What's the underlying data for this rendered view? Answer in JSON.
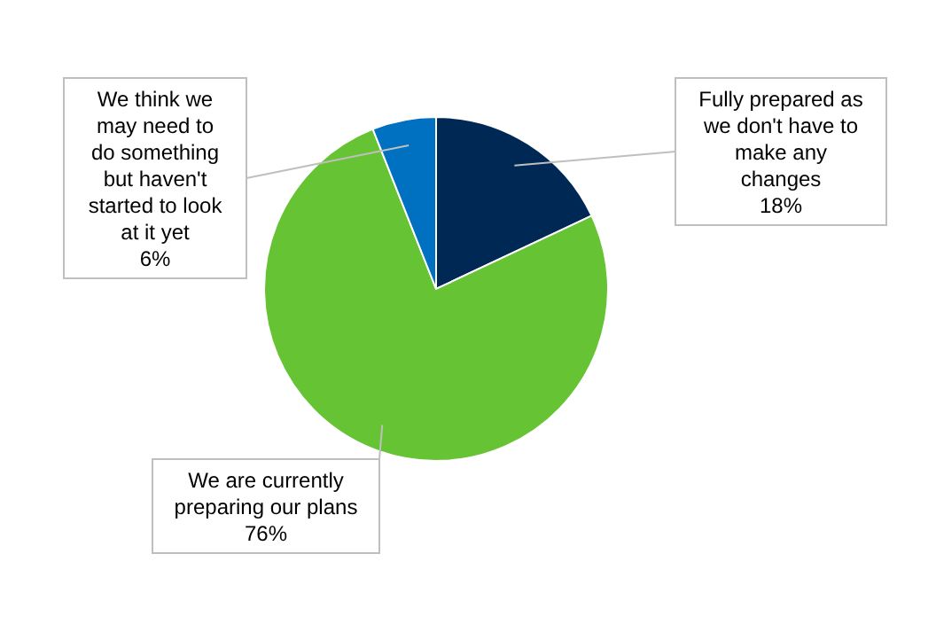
{
  "chart_data": {
    "type": "pie",
    "categories": [
      "Fully prepared as we don't have to make any changes",
      "We are currently preparing our plans",
      "We think we may need to do something but haven't started to look at it yet"
    ],
    "values": [
      18,
      76,
      6
    ],
    "colors": [
      "#002855",
      "#66c333",
      "#0070c0"
    ],
    "value_labels": [
      "18%",
      "76%",
      "6%"
    ]
  }
}
